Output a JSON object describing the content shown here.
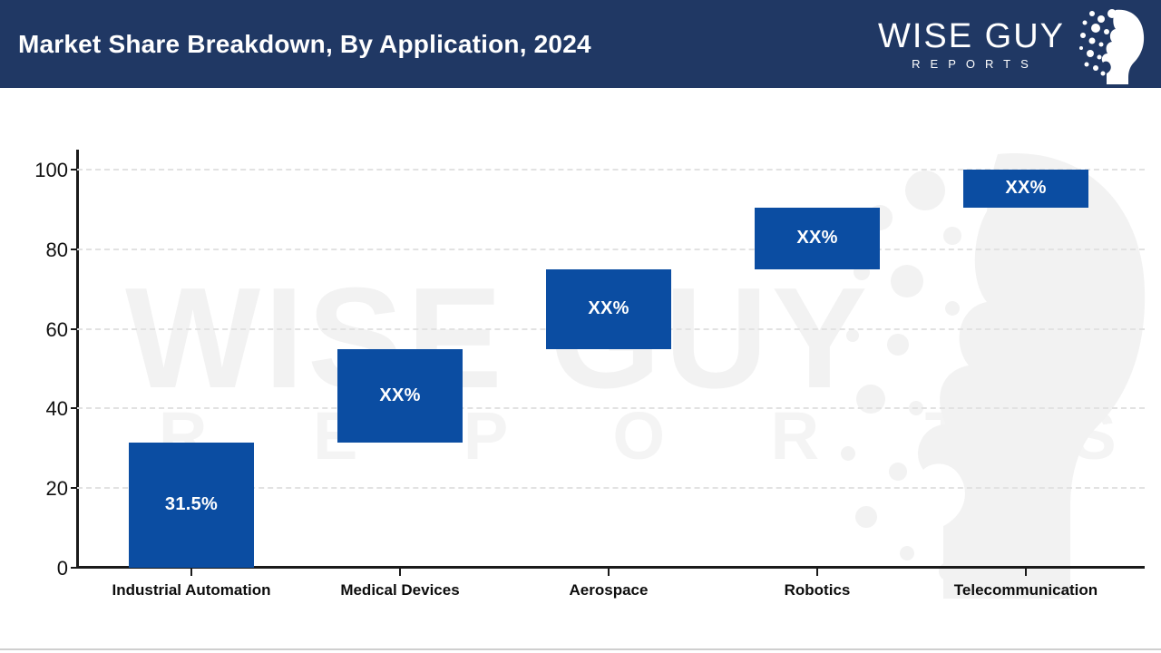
{
  "header": {
    "title": "Market Share Breakdown, By Application, 2024",
    "brand_line1": "WISE GUY",
    "brand_line2": "REPORTS"
  },
  "watermark": {
    "line1": "WISE GUY",
    "line2": "R E P O R T S"
  },
  "colors": {
    "header_bg": "#203864",
    "bar": "#0b4da2",
    "bar_label": "#ffffff",
    "axis": "#1a1a1a",
    "gridline": "#e2e2e2",
    "watermark": "#f2f2f2"
  },
  "chart_data": {
    "type": "bar",
    "subtype": "waterfall",
    "title": "Market Share Breakdown, By Application, 2024",
    "categories": [
      "Industrial Automation",
      "Medical Devices",
      "Aerospace",
      "Robotics",
      "Telecommunication"
    ],
    "bars": [
      {
        "category": "Industrial Automation",
        "from": 0,
        "to": 31.5,
        "label": "31.5%"
      },
      {
        "category": "Medical Devices",
        "from": 31.5,
        "to": 55,
        "label": "XX%"
      },
      {
        "category": "Aerospace",
        "from": 55,
        "to": 75,
        "label": "XX%"
      },
      {
        "category": "Robotics",
        "from": 75,
        "to": 90.5,
        "label": "XX%"
      },
      {
        "category": "Telecommunication",
        "from": 90.5,
        "to": 100,
        "label": "XX%"
      }
    ],
    "xlabel": "",
    "ylabel": "",
    "yticks": [
      0,
      20,
      40,
      60,
      80,
      100
    ],
    "ylim": [
      0,
      105
    ],
    "grid": "horizontal-dashed",
    "legend": "none"
  }
}
